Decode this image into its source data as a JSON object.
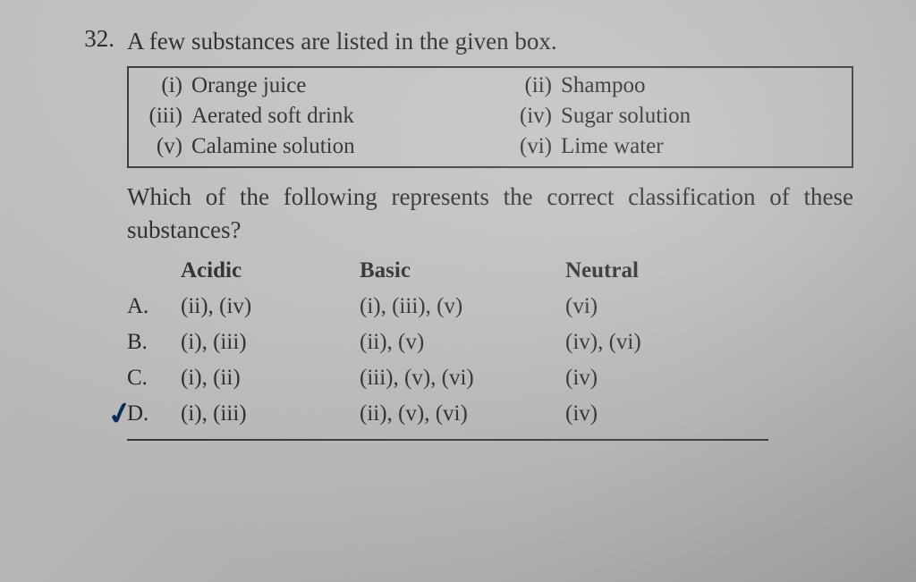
{
  "question": {
    "number": "32.",
    "stem": "A few substances are listed in the given box."
  },
  "box_items": [
    {
      "roman": "(i)",
      "text": "Orange juice"
    },
    {
      "roman": "(ii)",
      "text": "Shampoo"
    },
    {
      "roman": "(iii)",
      "text": "Aerated soft drink"
    },
    {
      "roman": "(iv)",
      "text": "Sugar solution"
    },
    {
      "roman": "(v)",
      "text": "Calamine solution"
    },
    {
      "roman": "(vi)",
      "text": "Lime water"
    }
  ],
  "sub_question": "Which of the following represents the correct classification of these substances?",
  "headers": {
    "acidic": "Acidic",
    "basic": "Basic",
    "neutral": "Neutral"
  },
  "options": [
    {
      "letter": "A.",
      "acidic": "(ii), (iv)",
      "basic": "(i), (iii), (v)",
      "neutral": "(vi)",
      "checked": false
    },
    {
      "letter": "B.",
      "acidic": "(i), (iii)",
      "basic": "(ii), (v)",
      "neutral": "(iv), (vi)",
      "checked": false
    },
    {
      "letter": "C.",
      "acidic": "(i), (ii)",
      "basic": "(iii), (v), (vi)",
      "neutral": "(iv)",
      "checked": false
    },
    {
      "letter": "D.",
      "acidic": "(i), (iii)",
      "basic": "(ii), (v), (vi)",
      "neutral": "(iv)",
      "checked": true
    }
  ],
  "check_glyph": "✓"
}
